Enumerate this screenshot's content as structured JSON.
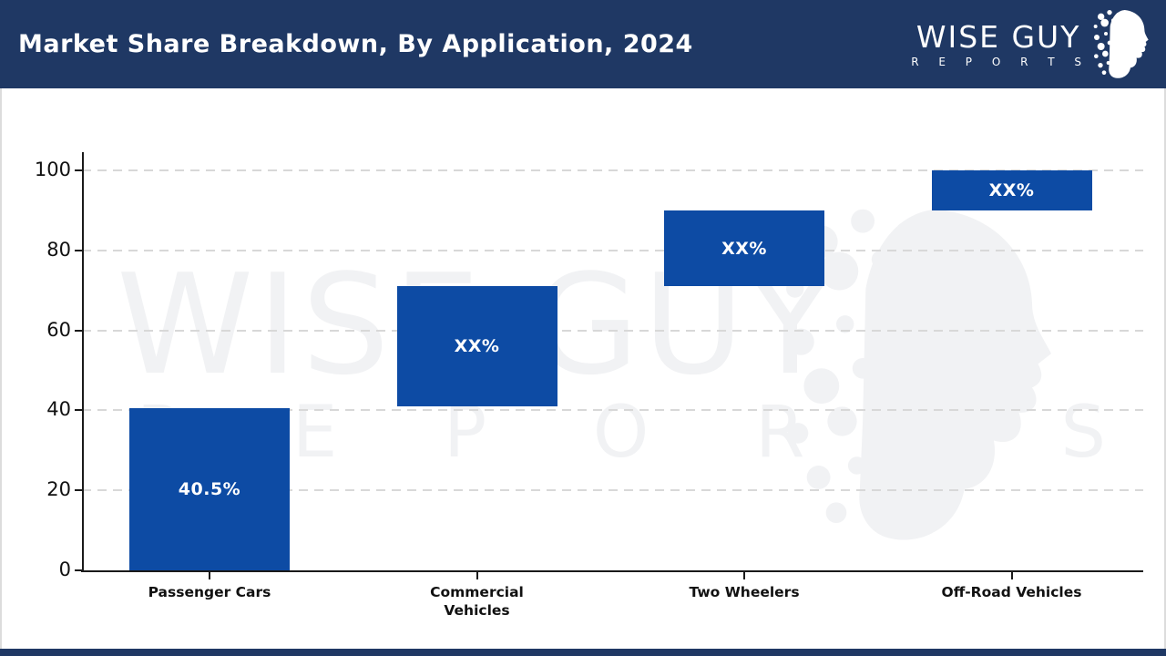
{
  "header": {
    "title": "Market Share Breakdown, By Application, 2024",
    "bg_color": "#1f3864",
    "logo": {
      "line1": "WISE GUY",
      "line2": "R E P O R T S"
    }
  },
  "watermark": {
    "line1": "WISE GUY",
    "line2": "R E P O R T S"
  },
  "footer": {
    "bg_color": "#1f3864"
  },
  "chart_data": {
    "type": "waterfall",
    "title": "Market Share Breakdown, By Application, 2024",
    "categories": [
      "Passenger Cars",
      "Commercial\nVehicles",
      "Two Wheelers",
      "Off-Road Vehicles"
    ],
    "segments": [
      {
        "category": "Passenger Cars",
        "start": 0,
        "end": 40.5,
        "label": "40.5%"
      },
      {
        "category": "Commercial Vehicles",
        "start": 41,
        "end": 71,
        "label": "XX%"
      },
      {
        "category": "Two Wheelers",
        "start": 71,
        "end": 90,
        "label": "XX%"
      },
      {
        "category": "Off-Road Vehicles",
        "start": 90,
        "end": 100,
        "label": "XX%"
      }
    ],
    "ylabel": "",
    "xlabel": "",
    "ylim": [
      0,
      100
    ],
    "yticks": [
      0,
      20,
      40,
      60,
      80,
      100
    ],
    "grid": "dashed-horizontal",
    "legend": "none",
    "bar_color": "#0d4ba4",
    "bar_label_color": "#ffffff",
    "axis_color": "#1a1a1a",
    "gridline_color": "#d8d8d8"
  }
}
